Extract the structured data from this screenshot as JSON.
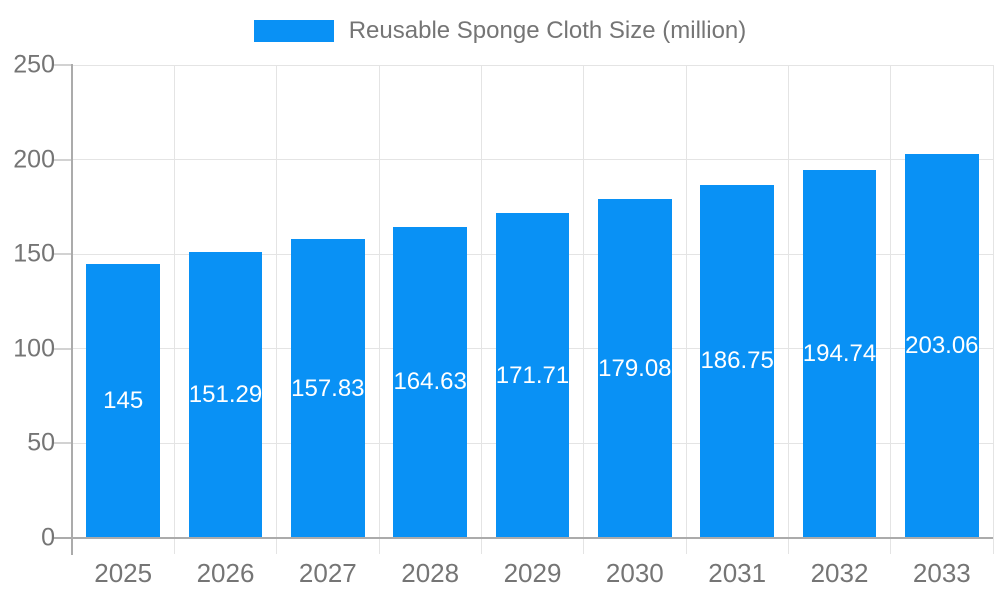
{
  "legend": {
    "label": "Reusable Sponge Cloth Size (million)"
  },
  "chart_data": {
    "type": "bar",
    "title": "Reusable Sponge Cloth Size (million)",
    "categories": [
      "2025",
      "2026",
      "2027",
      "2028",
      "2029",
      "2030",
      "2031",
      "2032",
      "2033"
    ],
    "values": [
      145,
      151.29,
      157.83,
      164.63,
      171.71,
      179.08,
      186.75,
      194.74,
      203.06
    ],
    "value_labels": [
      "145",
      "151.29",
      "157.83",
      "164.63",
      "171.71",
      "179.08",
      "186.75",
      "194.74",
      "203.06"
    ],
    "xlabel": "",
    "ylabel": "",
    "ylim": [
      0,
      250
    ],
    "yticks": [
      0,
      50,
      100,
      150,
      200,
      250
    ],
    "grid": true,
    "legend_position": "top",
    "colors": {
      "bar": "#0991F5",
      "grid": "#E4E4E4",
      "axis": "#ABABAB",
      "tick": "#D2D2D2",
      "text": "#757575",
      "value_label": "#FFFFFF"
    }
  }
}
